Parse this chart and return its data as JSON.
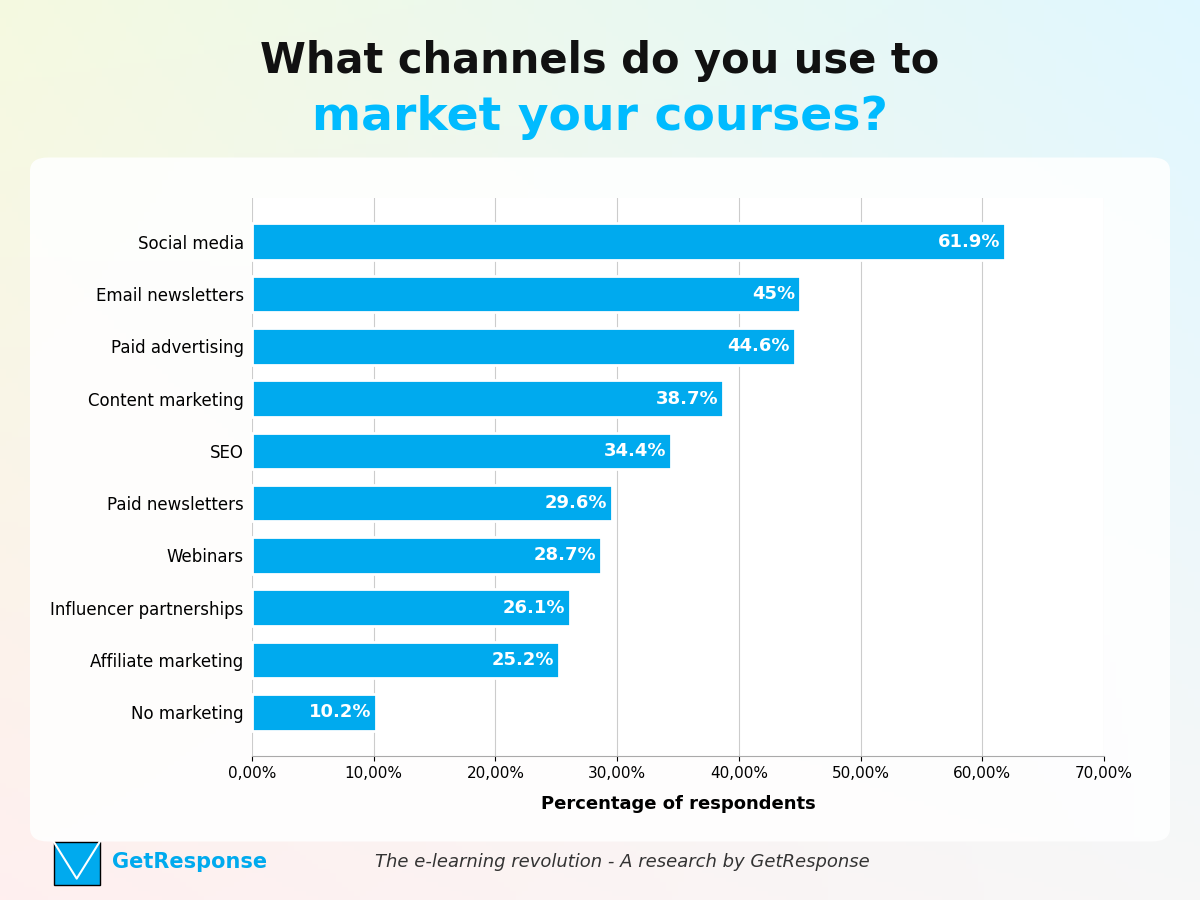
{
  "categories": [
    "Social media",
    "Email newsletters",
    "Paid advertising",
    "Content marketing",
    "SEO",
    "Paid newsletters",
    "Webinars",
    "Influencer partnerships",
    "Affiliate marketing",
    "No marketing"
  ],
  "values": [
    61.9,
    45.0,
    44.6,
    38.7,
    34.4,
    29.6,
    28.7,
    26.1,
    25.2,
    10.2
  ],
  "labels": [
    "61.9%",
    "45%",
    "44.6%",
    "38.7%",
    "34.4%",
    "29.6%",
    "28.7%",
    "26.1%",
    "25.2%",
    "10.2%"
  ],
  "bar_color": "#00AAEE",
  "title_line1": "What channels do you use to",
  "title_line2": "market your courses?",
  "title_color1": "#111111",
  "title_color2": "#00BBFF",
  "xlabel": "Percentage of respondents",
  "xlim": [
    0,
    70
  ],
  "xticks": [
    0,
    10,
    20,
    30,
    40,
    50,
    60,
    70
  ],
  "xtick_labels": [
    "0,00%",
    "10,00%",
    "20,00%",
    "30,00%",
    "40,00%",
    "50,00%",
    "60,00%",
    "70,00%"
  ],
  "footer_left": "GetResponse",
  "footer_right": "The e-learning revolution - A research by GetResponse",
  "bar_label_color": "#FFFFFF",
  "bar_label_fontsize": 13,
  "axis_label_fontsize": 13,
  "tick_label_fontsize": 11,
  "title_fontsize1": 30,
  "title_fontsize2": 34,
  "footer_fontsize": 13,
  "getresponse_color": "#00AAEE",
  "bg_tl": [
    0.96,
    0.98,
    0.88
  ],
  "bg_tr": [
    0.88,
    0.97,
    1.0
  ],
  "bg_bl": [
    1.0,
    0.94,
    0.94
  ],
  "bg_br": [
    0.97,
    0.97,
    0.97
  ]
}
